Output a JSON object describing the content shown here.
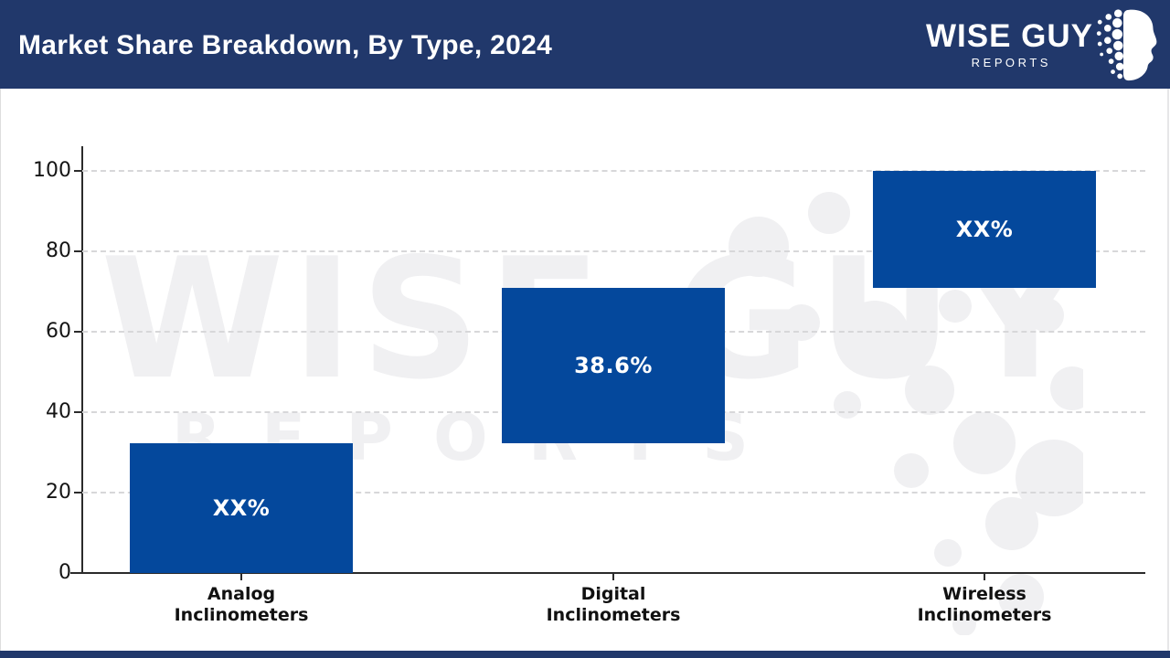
{
  "header": {
    "title": "Market Share Breakdown, By Type, 2024",
    "logo": {
      "name_line": "WISE GUY",
      "sub_line": "R E P O R T S"
    },
    "bg_color": "#21386B"
  },
  "watermark": {
    "name_line": "WISE GUY",
    "sub_line": "R E P O R T S"
  },
  "colors": {
    "header_bg": "#21386B",
    "footer_bg": "#21386B",
    "bar_fill": "#04489C",
    "bar_value_text": "#FFFFFF",
    "gridline": "#D7D7D9",
    "axis": "#2B2B2B",
    "watermark": "#F0F0F2"
  },
  "chart_data": {
    "type": "bar",
    "subtype": "floating-segment (waterfall-style, segments stack to 100)",
    "title": "Market Share Breakdown, By Type, 2024",
    "categories": [
      "Analog Inclinometers",
      "Digital Inclinometers",
      "Wireless Inclinometers"
    ],
    "category_lines": [
      [
        "Analog",
        "Inclinometers"
      ],
      [
        "Digital",
        "Inclinometers"
      ],
      [
        "Wireless",
        "Inclinometers"
      ]
    ],
    "values": [
      32.3,
      38.6,
      29.1
    ],
    "bars": [
      {
        "category": "Analog Inclinometers",
        "start": 0,
        "end": 32.3,
        "value_label": "XX%"
      },
      {
        "category": "Digital Inclinometers",
        "start": 32.3,
        "end": 70.9,
        "value_label": "38.6%"
      },
      {
        "category": "Wireless Inclinometers",
        "start": 70.9,
        "end": 100,
        "value_label": "XX%"
      }
    ],
    "yticks": [
      0,
      20,
      40,
      60,
      80,
      100
    ],
    "ylim": [
      0,
      106
    ],
    "xlabel": "",
    "ylabel": "",
    "legend": null,
    "grid": "horizontal-dashed"
  }
}
